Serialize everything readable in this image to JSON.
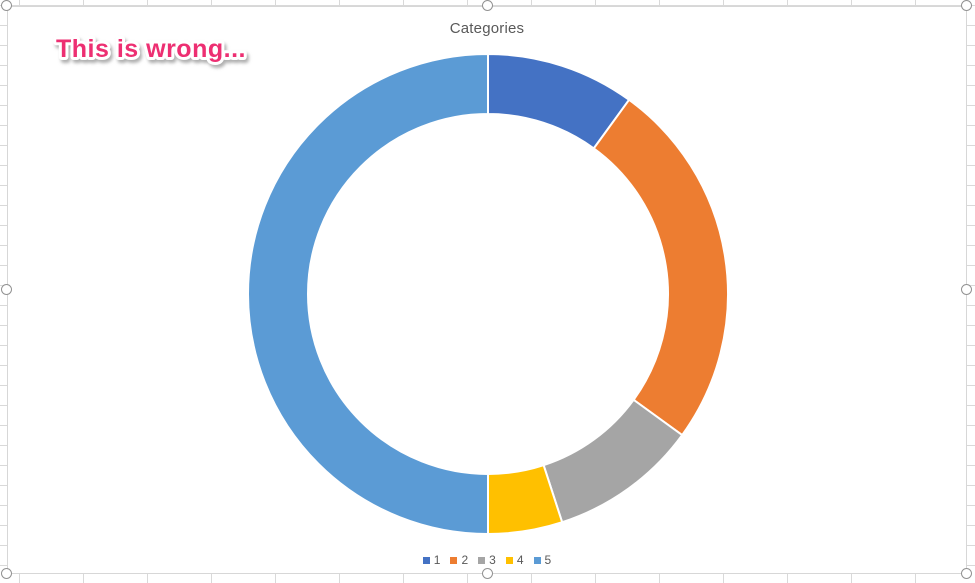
{
  "annotation": {
    "text": "This is wrong...",
    "color": "#ED2F72"
  },
  "chart": {
    "title": "Categories",
    "border_color": "#d7d7d7",
    "selected": true
  },
  "chart_data": {
    "type": "pie",
    "subtype": "doughnut",
    "title": "Categories",
    "categories": [
      "1",
      "2",
      "3",
      "4",
      "5"
    ],
    "values": [
      10,
      25,
      10,
      5,
      50
    ],
    "unit": "percent-of-whole",
    "colors": [
      "#4472C4",
      "#ED7D31",
      "#A5A5A5",
      "#FFC000",
      "#5B9BD5"
    ],
    "start_angle_deg": 0,
    "direction": "clockwise",
    "hole_ratio": 0.75,
    "legend_position": "bottom",
    "legend_text_color": "#595959",
    "title_color": "#595959"
  }
}
